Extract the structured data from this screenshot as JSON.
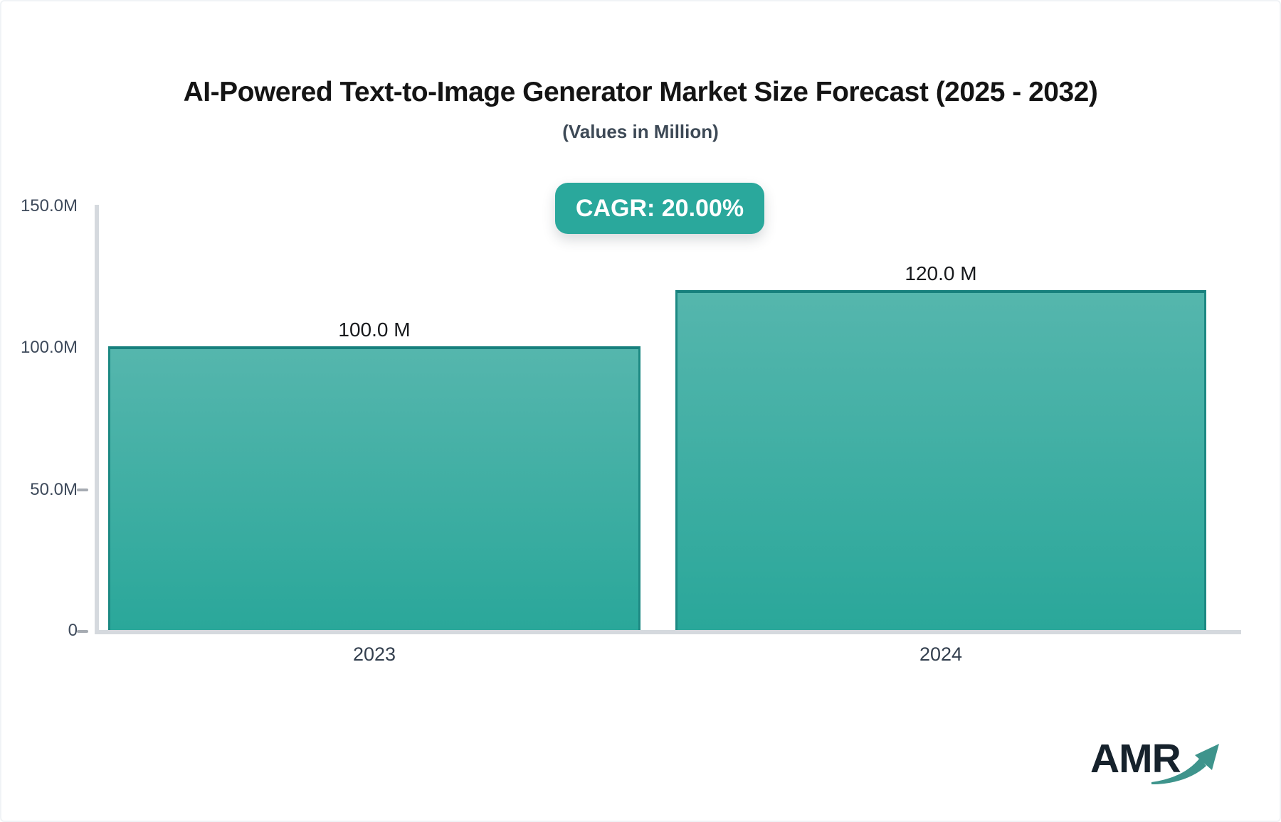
{
  "header": {
    "title": "AI-Powered Text-to-Image Generator Market Size Forecast (2025 - 2032)",
    "subtitle": "(Values in Million)",
    "cagr_badge": "CAGR: 20.00%"
  },
  "chart_data": {
    "type": "bar",
    "title": "AI-Powered Text-to-Image Generator Market Size Forecast (2025 - 2032)",
    "subtitle": "(Values in Million)",
    "unit": "Million",
    "cagr_percent": 20.0,
    "categories": [
      "2023",
      "2024"
    ],
    "values": [
      100.0,
      120.0
    ],
    "value_labels": [
      "100.0 M",
      "120.0 M"
    ],
    "ylim": [
      0,
      150
    ],
    "ytick_labels": [
      "150.0M",
      "100.0M",
      "50.0M",
      "0"
    ],
    "grid": false,
    "legend": false,
    "colors": {
      "bar_gradient_top": "#55b6ad",
      "bar_gradient_bottom": "#2aa79a",
      "bar_border": "#1d8983",
      "accent_badge": "#2aa89c",
      "axis_line": "#d5d9de",
      "tick_text": "#3e4a5b"
    }
  },
  "logo": {
    "text": "AMR",
    "arrow_icon": "growth-arrow-icon",
    "text_color": "#16222c",
    "arrow_color": "#3e948c"
  }
}
